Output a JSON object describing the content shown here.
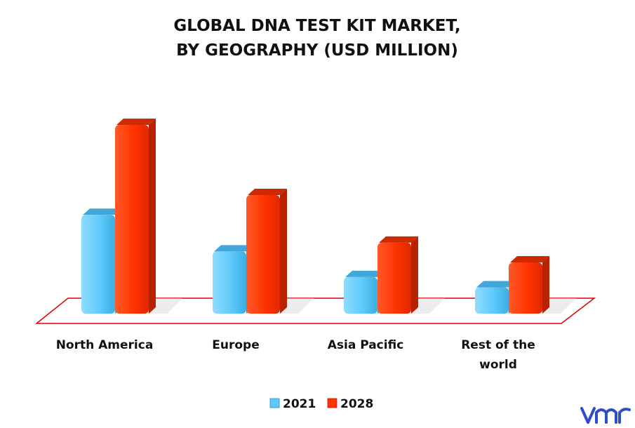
{
  "chart_data": {
    "type": "bar",
    "title": "GLOBAL DNA TEST KIT MARKET,",
    "subtitle": "BY GEOGRAPHY (USD MILLION)",
    "categories": [
      "North America",
      "Europe",
      "Asia Pacific",
      "Rest of the world"
    ],
    "series": [
      {
        "name": "2021",
        "color": "#5fcaf9",
        "values": [
          135,
          85,
          50,
          36
        ]
      },
      {
        "name": "2028",
        "color": "#ff3300",
        "values": [
          258,
          162,
          97,
          70
        ]
      }
    ],
    "ylim": [
      0,
      280
    ],
    "legend_position": "bottom",
    "grid": false
  },
  "logo": {
    "text": "vmr",
    "color": "#2d4ec7"
  }
}
